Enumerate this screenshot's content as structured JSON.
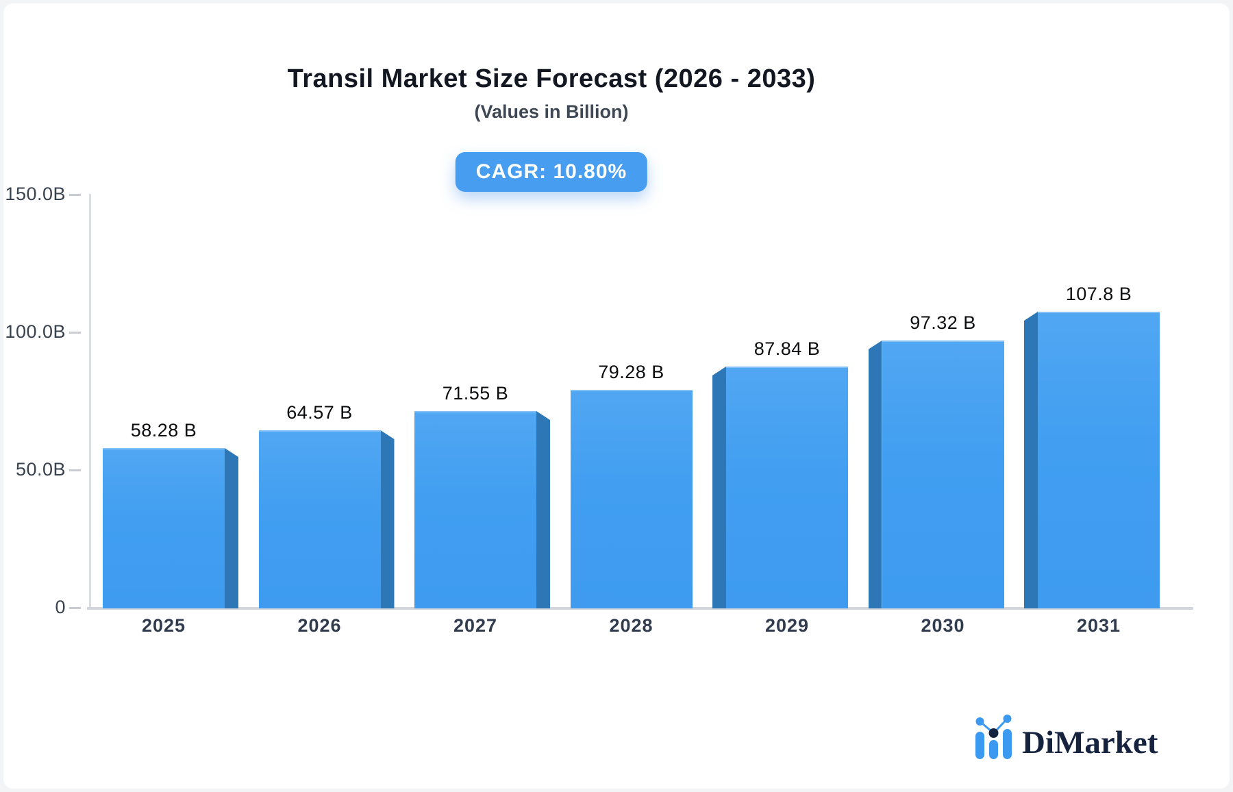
{
  "header": {
    "title": "Transil Market Size Forecast (2026 - 2033)",
    "subtitle": "(Values in Billion)"
  },
  "badge": {
    "label": "CAGR: 10.80%"
  },
  "chart_data": {
    "type": "bar",
    "title": "Transil Market Size Forecast (2026 - 2033)",
    "subtitle": "(Values in Billion)",
    "categories": [
      "2025",
      "2026",
      "2027",
      "2028",
      "2029",
      "2030",
      "2031"
    ],
    "values": [
      58.28,
      64.57,
      71.55,
      79.28,
      87.84,
      97.32,
      107.8
    ],
    "value_labels": [
      "58.28 B",
      "64.57 B",
      "71.55 B",
      "79.28 B",
      "87.84 B",
      "97.32 B",
      "107.8 B"
    ],
    "xlabel": "",
    "ylabel": "",
    "ylim": [
      0,
      150
    ],
    "yticks": [
      {
        "label": "150.0B",
        "value": 150
      },
      {
        "label": "100.0B",
        "value": 100
      },
      {
        "label": "50.0B",
        "value": 50
      },
      {
        "label": "0",
        "value": 0
      }
    ],
    "grid": false,
    "legend": false,
    "bar_style": "3d-perspective"
  },
  "colors": {
    "bar_face": "#419ef1",
    "bar_face_top": "#51a7f2",
    "bar_side": "#2d77b7",
    "badge_bg": "#479df0",
    "badge_text": "#ffffff",
    "axis_line": "#dadde2",
    "baseline": "#d3d6db",
    "title_text": "#121721",
    "brand_navy": "#16233f",
    "brand_blue": "#3b9af0"
  },
  "footer": {
    "brand": "DiMarket",
    "logo_icon": "bar-line-chart-icon"
  }
}
